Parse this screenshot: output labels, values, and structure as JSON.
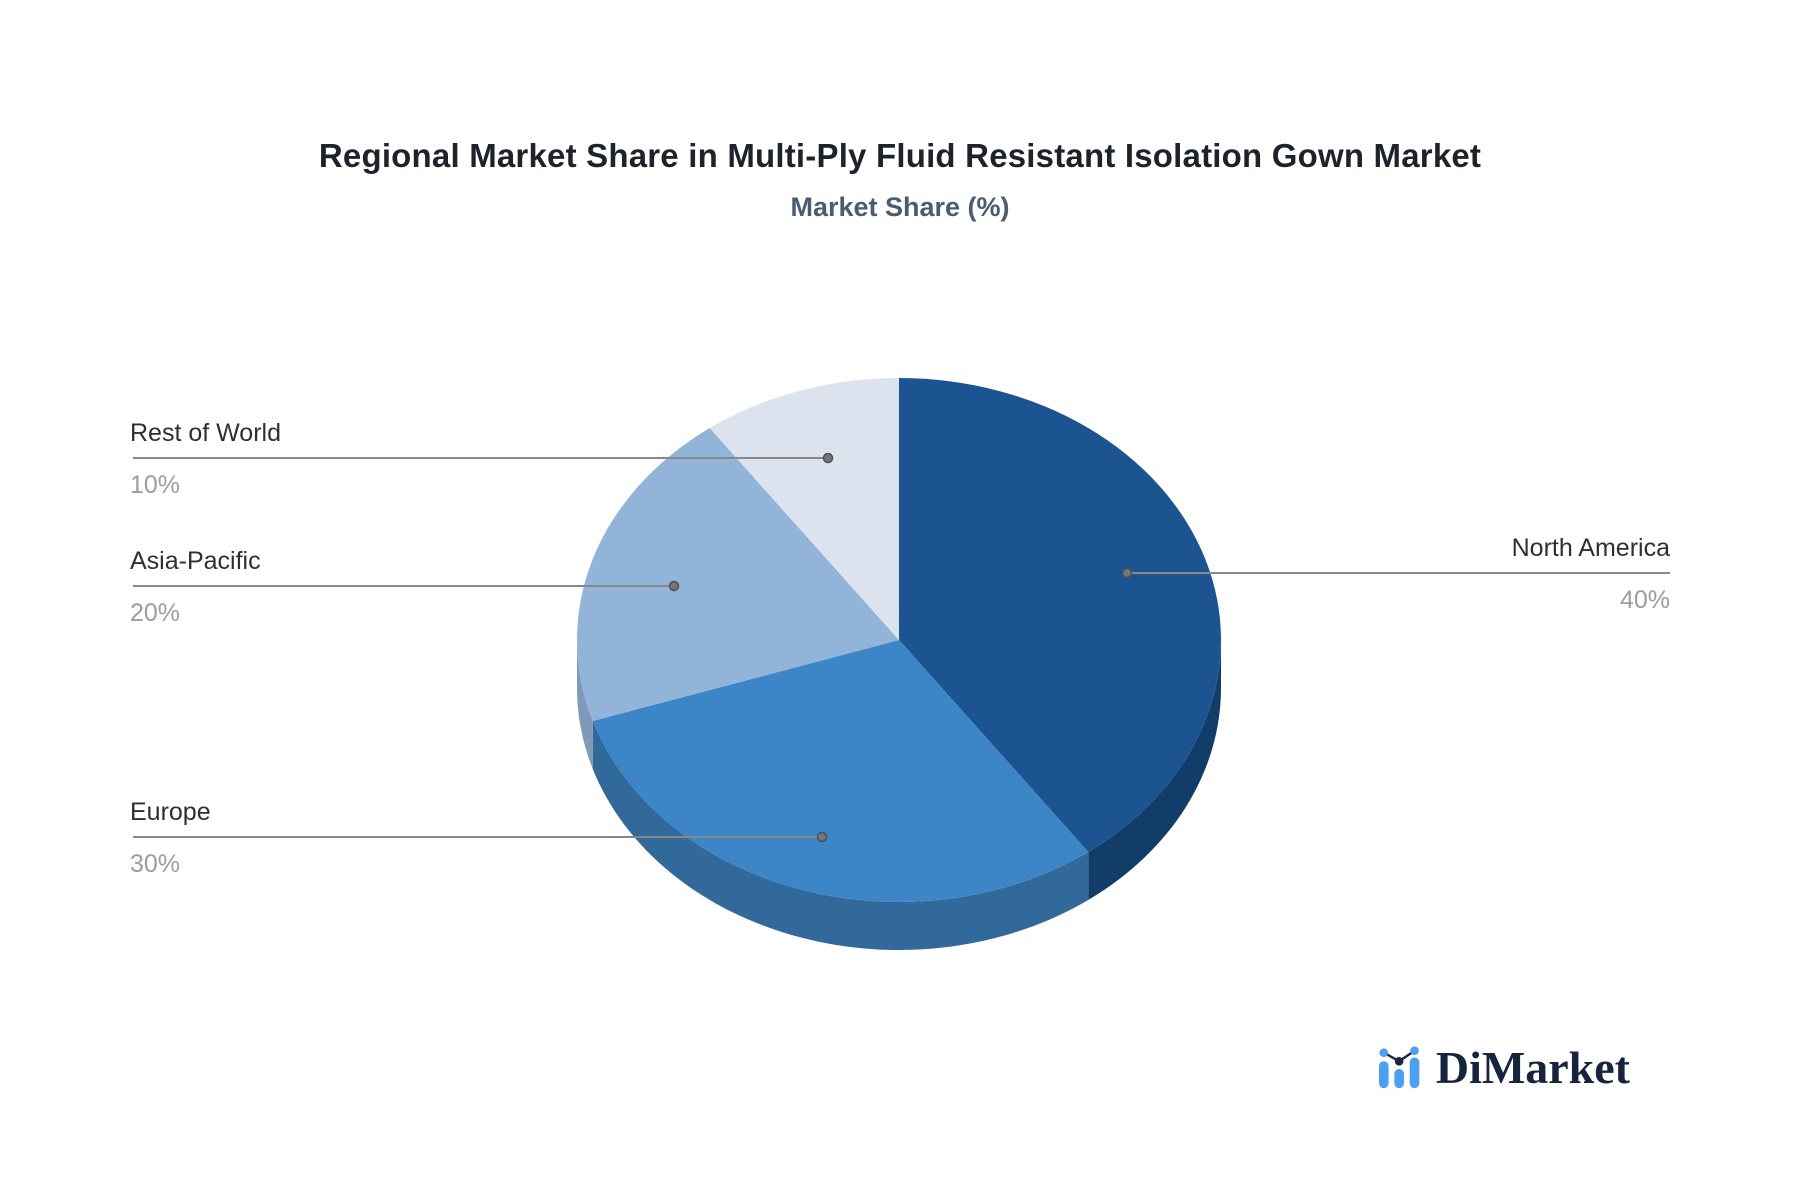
{
  "title": "Regional Market Share in Multi-Ply Fluid Resistant Isolation Gown Market",
  "subtitle": "Market Share (%)",
  "chart_data": {
    "type": "pie",
    "style": "3d-pie",
    "title": "Regional Market Share in Multi-Ply Fluid Resistant Isolation Gown Market",
    "subtitle": "Market Share (%)",
    "unit": "%",
    "direction": "clockwise",
    "start_angle_deg": 0,
    "categories": [
      "North America",
      "Europe",
      "Asia-Pacific",
      "Rest of World"
    ],
    "values": [
      40,
      30,
      20,
      10
    ],
    "pct_labels": [
      "40%",
      "30%",
      "20%",
      "10%"
    ],
    "colors": [
      "#1b5490",
      "#3c86c8",
      "#92b4d9",
      "#dde3ee"
    ],
    "side_colors": [
      "#123d69",
      "#31699a",
      "#7e9ab8",
      "#c5cedd"
    ],
    "legend_position": "callout-leader-lines",
    "label_color": "#2d2f34",
    "pct_color": "#9a9da1",
    "leader_line_color": "#888888"
  },
  "logo": {
    "text": "DiMarket",
    "icon": "bar-chart-logo-icon",
    "text_color": "#16243d",
    "bar_color": "#4aa0f2",
    "dot_color": "#1a2742"
  }
}
